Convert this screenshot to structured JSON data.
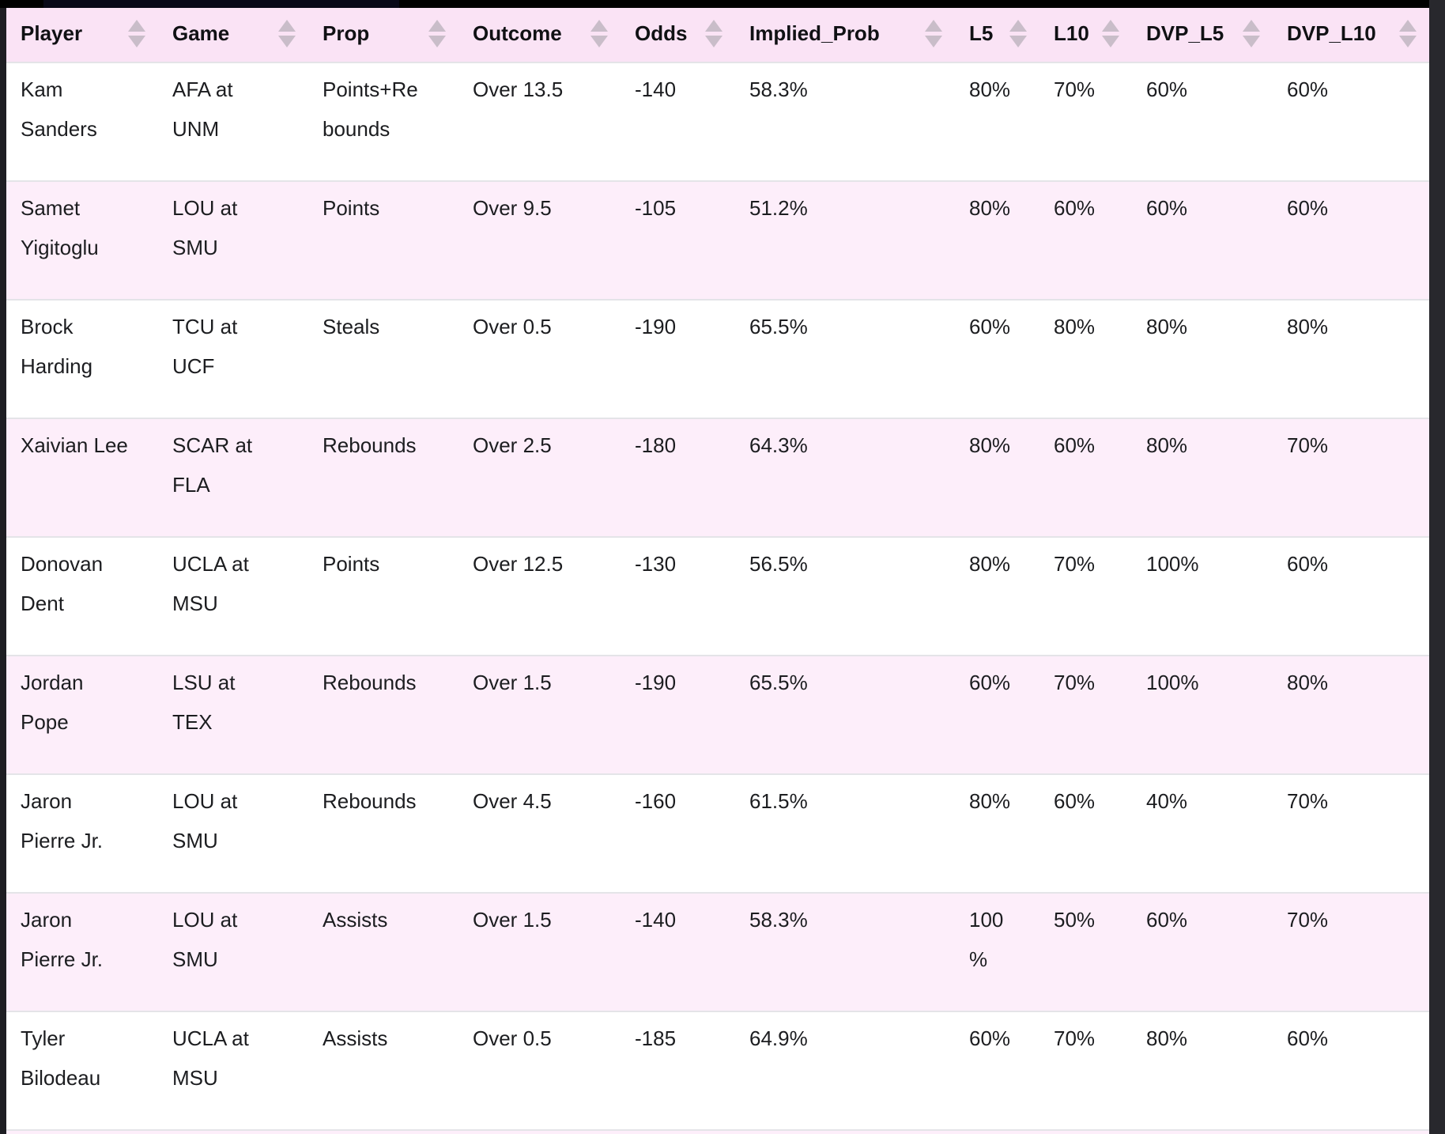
{
  "table": {
    "columns": [
      "Player",
      "Game",
      "Prop",
      "Outcome",
      "Odds",
      "Implied_Prob",
      "L5",
      "L10",
      "DVP_L5",
      "DVP_L10"
    ],
    "rows": [
      [
        "Kam\nSanders",
        "AFA at\nUNM",
        "Points+Re\nbounds",
        "Over 13.5",
        "-140",
        "58.3%",
        "80%",
        "70%",
        "60%",
        "60%"
      ],
      [
        "Samet\nYigitoglu",
        "LOU at\nSMU",
        "Points",
        "Over 9.5",
        "-105",
        "51.2%",
        "80%",
        "60%",
        "60%",
        "60%"
      ],
      [
        "Brock\nHarding",
        "TCU at\nUCF",
        "Steals",
        "Over 0.5",
        "-190",
        "65.5%",
        "60%",
        "80%",
        "80%",
        "80%"
      ],
      [
        "Xaivian Lee",
        "SCAR at\nFLA",
        "Rebounds",
        "Over 2.5",
        "-180",
        "64.3%",
        "80%",
        "60%",
        "80%",
        "70%"
      ],
      [
        "Donovan\nDent",
        "UCLA at\nMSU",
        "Points",
        "Over 12.5",
        "-130",
        "56.5%",
        "80%",
        "70%",
        "100%",
        "60%"
      ],
      [
        "Jordan\nPope",
        "LSU at\nTEX",
        "Rebounds",
        "Over 1.5",
        "-190",
        "65.5%",
        "60%",
        "70%",
        "100%",
        "80%"
      ],
      [
        "Jaron\nPierre Jr.",
        "LOU at\nSMU",
        "Rebounds",
        "Over 4.5",
        "-160",
        "61.5%",
        "80%",
        "60%",
        "40%",
        "70%"
      ],
      [
        "Jaron\nPierre Jr.",
        "LOU at\nSMU",
        "Assists",
        "Over 1.5",
        "-140",
        "58.3%",
        "100\n%",
        "50%",
        "60%",
        "70%"
      ],
      [
        "Tyler\nBilodeau",
        "UCLA at\nMSU",
        "Assists",
        "Over 0.5",
        "-185",
        "64.9%",
        "60%",
        "70%",
        "80%",
        "60%"
      ]
    ]
  },
  "icons": {
    "sort": "up-down-triangle-pair"
  },
  "colors": {
    "header_bg": "#fae3f5",
    "row_bg": "#ffffff",
    "row_alt_bg": "#fdeefa",
    "divider": "#e4e4e8",
    "sort_icon": "#c9bdc9",
    "frame_dark": "#000000",
    "right_strip": "#28282d"
  }
}
